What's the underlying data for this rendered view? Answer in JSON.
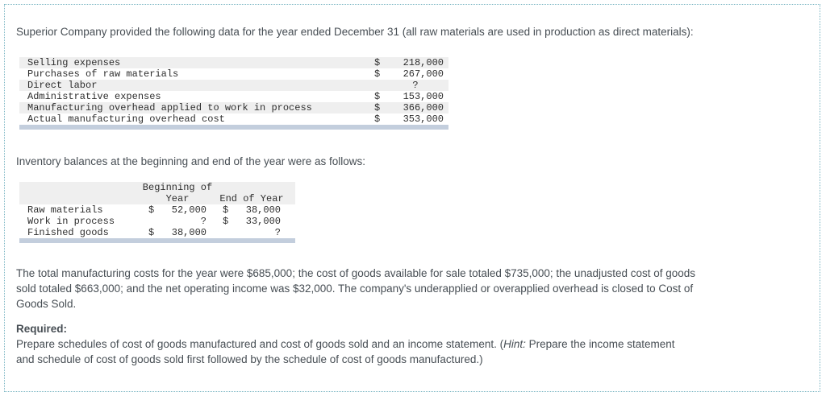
{
  "colors": {
    "row_shade": "#efefef",
    "table_footer_bar": "#c3cedd",
    "page_border_dotted": "#7ab5c3",
    "body_text": "#474e54"
  },
  "intro": "Superior Company provided the following data for the year ended December 31 (all raw materials are used in production as direct materials):",
  "expenses_table": {
    "rows": [
      {
        "label": "Selling expenses",
        "dollar": "$",
        "amount": "218,000"
      },
      {
        "label": "Purchases of raw materials",
        "dollar": "$",
        "amount": "267,000"
      },
      {
        "label": "Direct labor",
        "dollar": "",
        "amount": "?"
      },
      {
        "label": "Administrative expenses",
        "dollar": "$",
        "amount": "153,000"
      },
      {
        "label": "Manufacturing overhead applied to work in process",
        "dollar": "$",
        "amount": "366,000"
      },
      {
        "label": "Actual manufacturing overhead cost",
        "dollar": "$",
        "amount": "353,000"
      }
    ]
  },
  "inventory_intro": "Inventory balances at the beginning and end of the year were as follows:",
  "inventory_table": {
    "header": {
      "begin_line1": "Beginning of",
      "begin_line2": "Year",
      "end": "End of Year"
    },
    "rows": [
      {
        "label": "Raw materials",
        "begin_dollar": "$",
        "begin_amount": "52,000",
        "end_dollar": "$",
        "end_amount": "38,000"
      },
      {
        "label": "Work in process",
        "begin_dollar": "",
        "begin_amount": "?",
        "end_dollar": "$",
        "end_amount": "33,000"
      },
      {
        "label": "Finished goods",
        "begin_dollar": "$",
        "begin_amount": "38,000",
        "end_dollar": "",
        "end_amount": "?"
      }
    ]
  },
  "summary": "The total manufacturing costs for the year were $685,000; the cost of goods available for sale totaled $735,000; the unadjusted cost of goods sold totaled $663,000; and the net operating income was $32,000. The company's underapplied or overapplied overhead is closed to Cost of Goods Sold.",
  "required": {
    "label": "Required:",
    "text_before_hint": "Prepare schedules of cost of goods manufactured and cost of goods sold and an income statement. (",
    "hint_label": "Hint:",
    "text_after_hint": " Prepare the income statement and schedule of cost of goods sold first followed by the schedule of cost of goods manufactured.)"
  }
}
